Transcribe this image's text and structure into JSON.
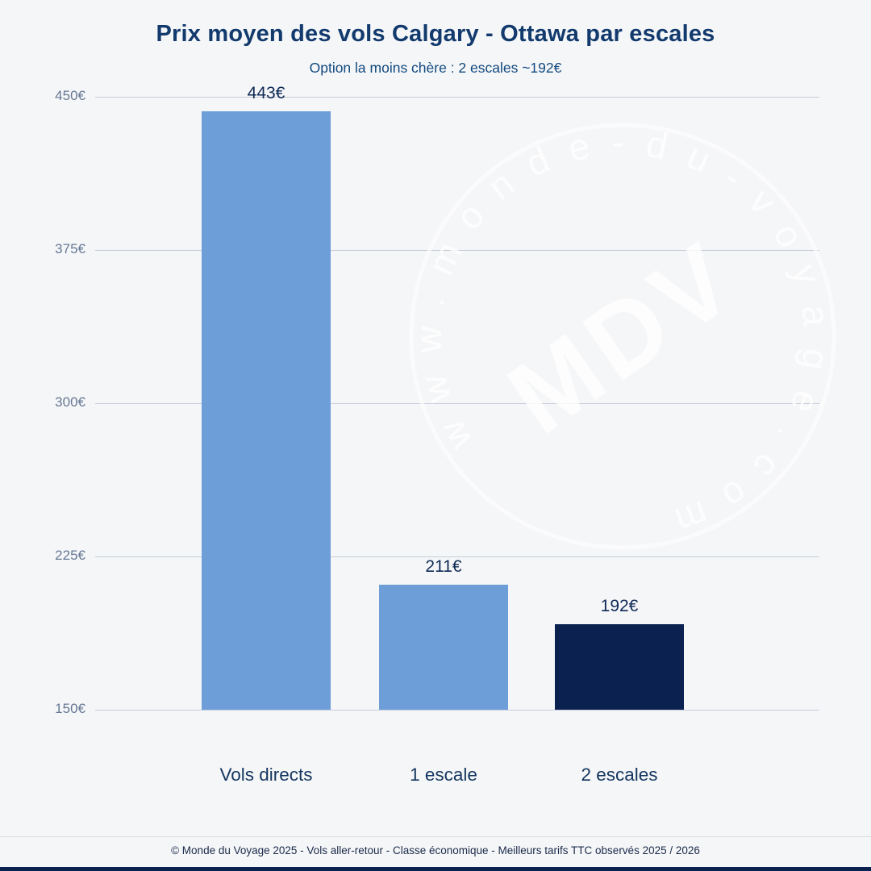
{
  "title": "Prix moyen des vols Calgary - Ottawa par escales",
  "subtitle": "Option la moins chère : 2 escales ~192€",
  "chart_data": {
    "type": "bar",
    "categories": [
      "Vols directs",
      "1 escale",
      "2 escales"
    ],
    "values": [
      443,
      211,
      192
    ],
    "value_labels": [
      "443€",
      "211€",
      "192€"
    ],
    "ylim": [
      150,
      450
    ],
    "yticks": [
      450,
      375,
      300,
      225,
      150
    ],
    "ytick_labels": [
      "450€",
      "375€",
      "300€",
      "225€",
      "150€"
    ],
    "bar_colors": [
      "#6d9ed8",
      "#6d9ed8",
      "#0b2150"
    ],
    "grid": true,
    "legend": false,
    "title": "Prix moyen des vols Calgary - Ottawa par escales",
    "xlabel": "",
    "ylabel": ""
  },
  "watermark": {
    "circle_text": "www.monde-du-voyage.com",
    "center_text": "MDV"
  },
  "footer": {
    "text": "© Monde du Voyage 2025 - Vols aller-retour - Classe économique - Meilleurs tarifs TTC observés 2025 / 2026"
  },
  "colors": {
    "background": "#f5f6f8",
    "title": "#123a6d",
    "subtitle": "#11497f",
    "grid": "#c6ccd9",
    "ytick": "#667894",
    "bar_light": "#6d9ed8",
    "bar_dark": "#0b2150",
    "value_label": "#0e2a55",
    "category_label": "#14365f",
    "footer_text": "#1a2b4a"
  }
}
